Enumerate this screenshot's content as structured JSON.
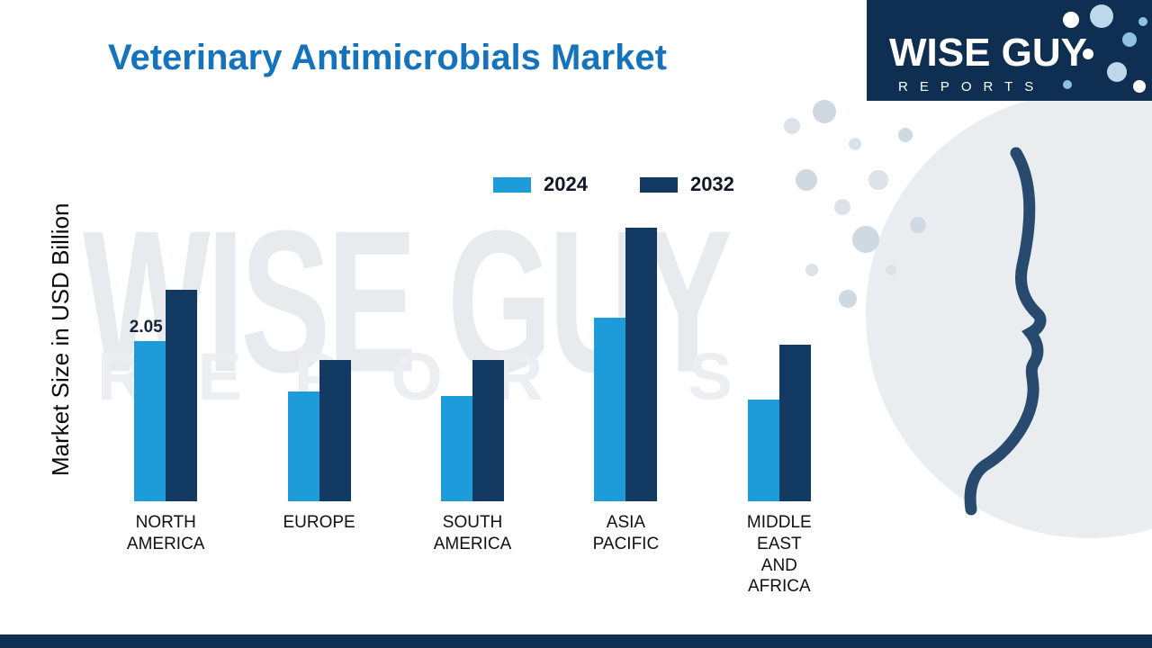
{
  "header": {
    "title": "Veterinary Antimicrobials Market"
  },
  "logo": {
    "name": "WISE GUY",
    "subtitle": "REPORTS"
  },
  "watermark": {
    "line1": "WISE GUY",
    "line2": "REPORTS"
  },
  "legend": {
    "items": [
      {
        "label": "2024",
        "color": "#1e9cd9"
      },
      {
        "label": "2032",
        "color": "#123a63"
      }
    ]
  },
  "chart_data": {
    "type": "bar",
    "title": "Veterinary Antimicrobials Market",
    "ylabel": "Market Size in USD Billion",
    "xlabel": "",
    "categories": [
      "NORTH AMERICA",
      "EUROPE",
      "SOUTH AMERICA",
      "ASIA PACIFIC",
      "MIDDLE EAST AND AFRICA"
    ],
    "category_display": [
      "NORTH\nAMERICA",
      "EUROPE",
      "SOUTH\nAMERICA",
      "ASIA\nPACIFIC",
      "MIDDLE\nEAST\nAND\nAFRICA"
    ],
    "series": [
      {
        "name": "2024",
        "color": "#1e9cd9",
        "values": [
          2.05,
          1.4,
          1.35,
          2.35,
          1.3
        ]
      },
      {
        "name": "2032",
        "color": "#123a63",
        "values": [
          2.7,
          1.8,
          1.8,
          3.5,
          2.0
        ]
      }
    ],
    "annotations": [
      {
        "series": "2024",
        "category": "NORTH AMERICA",
        "text": "2.05"
      }
    ],
    "ylim": [
      0,
      3.6
    ],
    "grid": false,
    "axis_lines": false,
    "legend_position": "top"
  },
  "colors": {
    "title": "#1573bd",
    "bar_2024": "#1e9cd9",
    "bar_2032": "#123a63",
    "header_navy": "#0e2f52",
    "watermark": "#e8ebee",
    "footer": "#0e2f52"
  }
}
